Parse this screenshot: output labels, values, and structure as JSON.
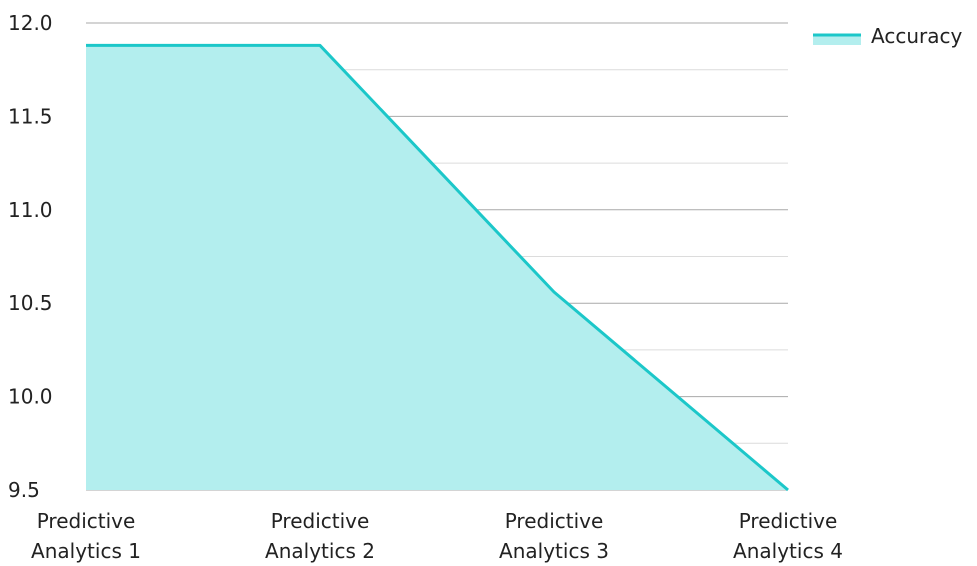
{
  "chart_data": {
    "type": "area",
    "categories": [
      [
        "Predictive",
        "Analytics 1"
      ],
      [
        "Predictive",
        "Analytics 2"
      ],
      [
        "Predictive",
        "Analytics 3"
      ],
      [
        "Predictive",
        "Analytics 4"
      ]
    ],
    "series": [
      {
        "name": "Accuracy",
        "values": [
          11.88,
          11.88,
          10.56,
          9.5
        ],
        "line_color": "#1cc7c9",
        "fill_color": "#b3eeee"
      }
    ],
    "y_ticks": [
      "12.0",
      "11.5",
      "11.0",
      "10.5",
      "10.0",
      "9.5"
    ],
    "ylim": [
      9.5,
      12.0
    ],
    "y_minor_step": 0.25,
    "grid": true,
    "legend_position": "top-right",
    "colors": {
      "major_grid": "#a9a9a9",
      "minor_grid": "#dcdcdc"
    }
  }
}
